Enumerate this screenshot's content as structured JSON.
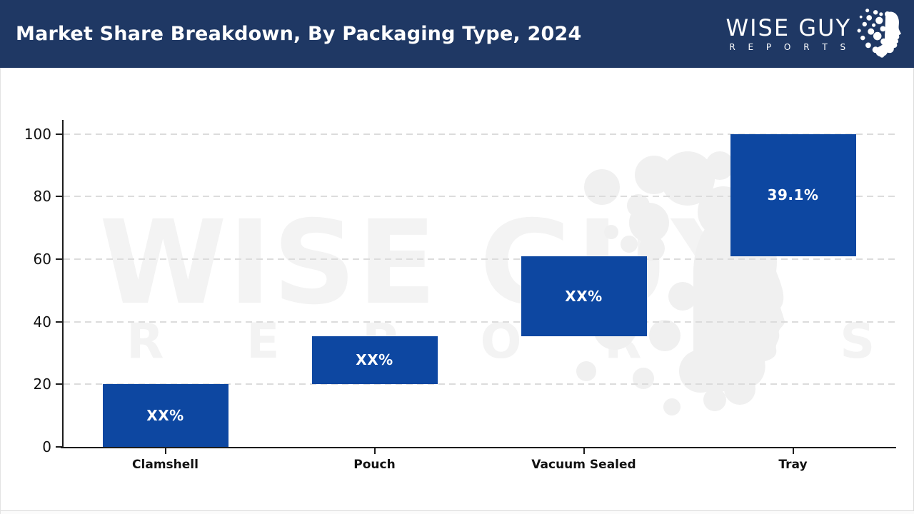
{
  "header": {
    "title": "Market Share Breakdown, By Packaging Type, 2024",
    "logo": {
      "line1": "WISE GUY",
      "line2": "R E P O R T S"
    }
  },
  "watermark": {
    "line1": "WISE GUY",
    "line2": "R E P O R T S"
  },
  "colors": {
    "header_bg": "#1F3864",
    "bar_fill": "#0D47A1",
    "gridline": "#DCDCDC",
    "axis": "#1C1C1C",
    "watermark": "#F3F3F3",
    "bar_label_text": "#FFFFFF"
  },
  "chart_data": {
    "type": "bar",
    "subtype": "waterfall-floating-bars",
    "title": "Market Share Breakdown, By Packaging Type, 2024",
    "categories": [
      "Clamshell",
      "Pouch",
      "Vacuum Sealed",
      "Tray"
    ],
    "segments": [
      {
        "category": "Clamshell",
        "start": 0,
        "end": 20,
        "label": "XX%"
      },
      {
        "category": "Pouch",
        "start": 20.1,
        "end": 35.4,
        "label": "XX%"
      },
      {
        "category": "Vacuum Sealed",
        "start": 35.4,
        "end": 61,
        "label": "XX%"
      },
      {
        "category": "Tray",
        "start": 60.9,
        "end": 100,
        "label": "39.1%"
      }
    ],
    "xlabel": "",
    "ylabel": "",
    "ylim": [
      0,
      100
    ],
    "yticks": [
      0,
      20,
      40,
      60,
      80,
      100
    ],
    "grid": "horizontal-dashed",
    "legend": "none"
  }
}
